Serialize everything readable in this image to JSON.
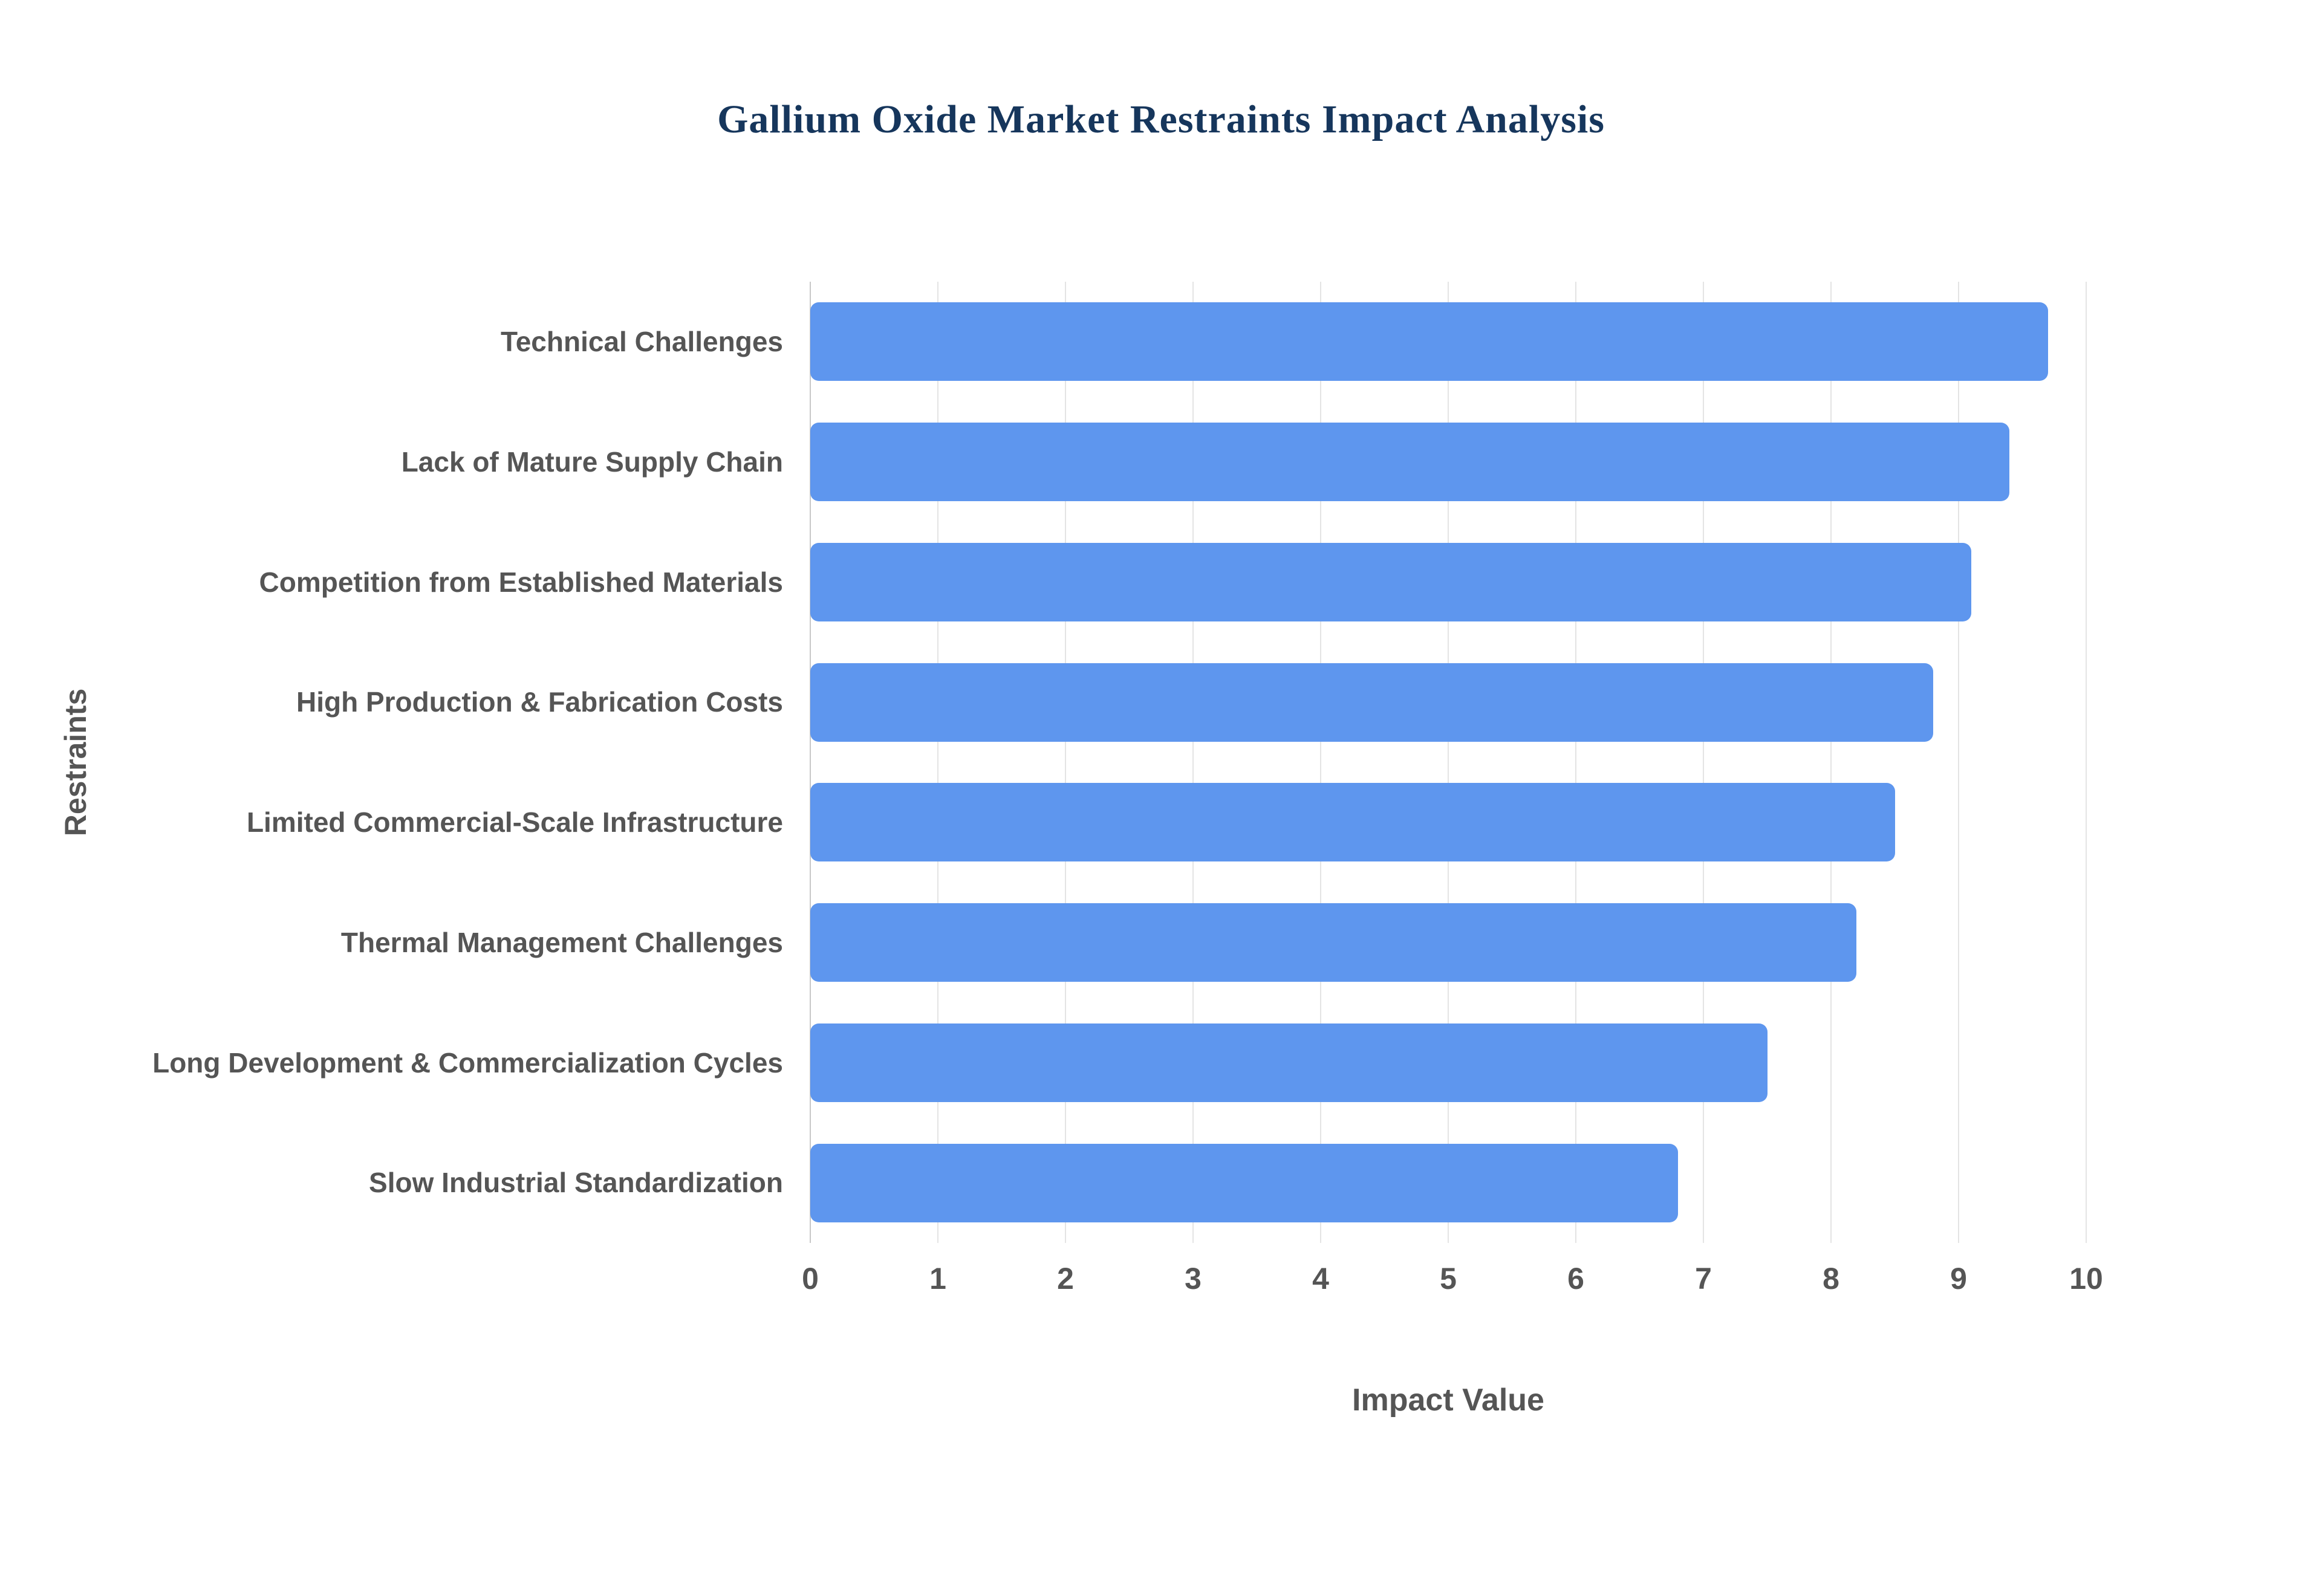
{
  "page": {
    "title": "Gallium Oxide Market Restraints Impact Analysis"
  },
  "chart_data": {
    "type": "bar",
    "orientation": "horizontal",
    "title": "Gallium Oxide Market Restraints Impact Analysis",
    "categories": [
      "Technical Challenges",
      "Lack of Mature Supply Chain",
      "Competition from Established Materials",
      "High Production & Fabrication Costs",
      "Limited Commercial-Scale Infrastructure",
      "Thermal Management Challenges",
      "Long Development & Commercialization Cycles",
      "Slow Industrial Standardization"
    ],
    "values": [
      9.7,
      9.4,
      9.1,
      8.8,
      8.5,
      8.2,
      7.5,
      6.8
    ],
    "xlabel": "Impact Value",
    "ylabel": "Restraints",
    "xlim": [
      0,
      10
    ],
    "xticks": [
      0,
      1,
      2,
      3,
      4,
      5,
      6,
      7,
      8,
      9,
      10
    ],
    "grid": true,
    "legend": false,
    "colors": {
      "bar": "#5E96EE",
      "title": "#16365C",
      "label": "#555555",
      "gridline": "#E4E4E4",
      "axis": "#C8C8C8"
    }
  }
}
